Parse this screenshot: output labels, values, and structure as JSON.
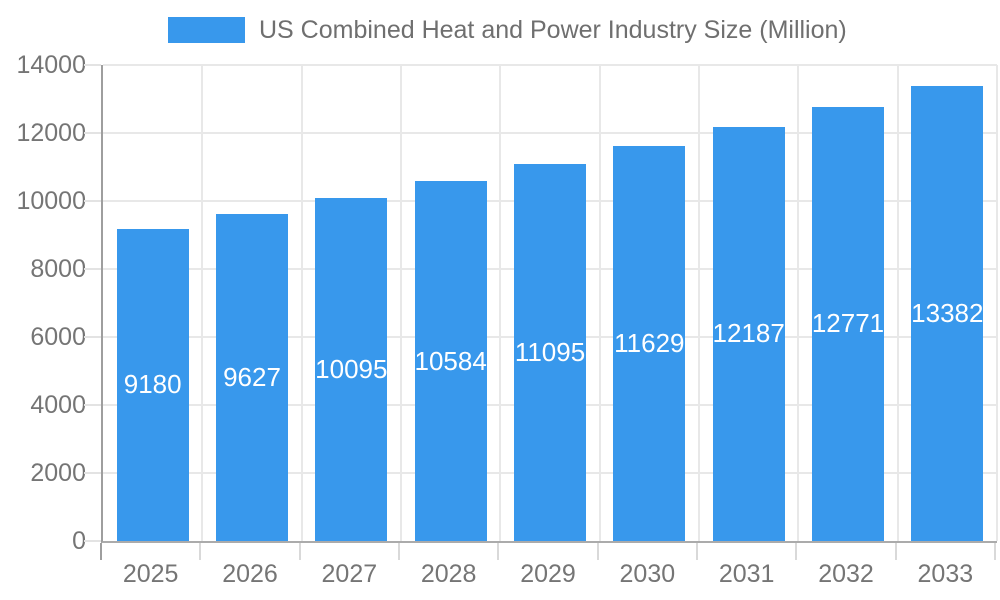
{
  "legend": {
    "label": "US Combined Heat and Power Industry Size (Million)"
  },
  "colors": {
    "bar": "#3898EC",
    "grid": "#E8E8E8",
    "y_axis_line": "#9E9E9E",
    "baseline": "#ABABAB",
    "x_tick": "#D9D9D9",
    "y_tick": "#E3E3E3",
    "axis_text": "#757575",
    "title_text": "#6F6F6F",
    "bar_label_text": "#FFFFFF",
    "background": "#FFFFFF"
  },
  "chart_data": {
    "type": "bar",
    "title": "US Combined Heat and Power Industry Size (Million)",
    "categories": [
      "2025",
      "2026",
      "2027",
      "2028",
      "2029",
      "2030",
      "2031",
      "2032",
      "2033"
    ],
    "values": [
      9180,
      9627,
      10095,
      10584,
      11095,
      11629,
      12187,
      12771,
      13382
    ],
    "series": [
      {
        "name": "US Combined Heat and Power Industry Size (Million)",
        "values": [
          9180,
          9627,
          10095,
          10584,
          11095,
          11629,
          12187,
          12771,
          13382
        ]
      }
    ],
    "xlabel": "",
    "ylabel": "",
    "ylim": [
      0,
      14000
    ],
    "yticks": [
      0,
      2000,
      4000,
      6000,
      8000,
      10000,
      12000,
      14000
    ],
    "grid": true,
    "legend_position": "top",
    "value_labels": "inside-center"
  }
}
